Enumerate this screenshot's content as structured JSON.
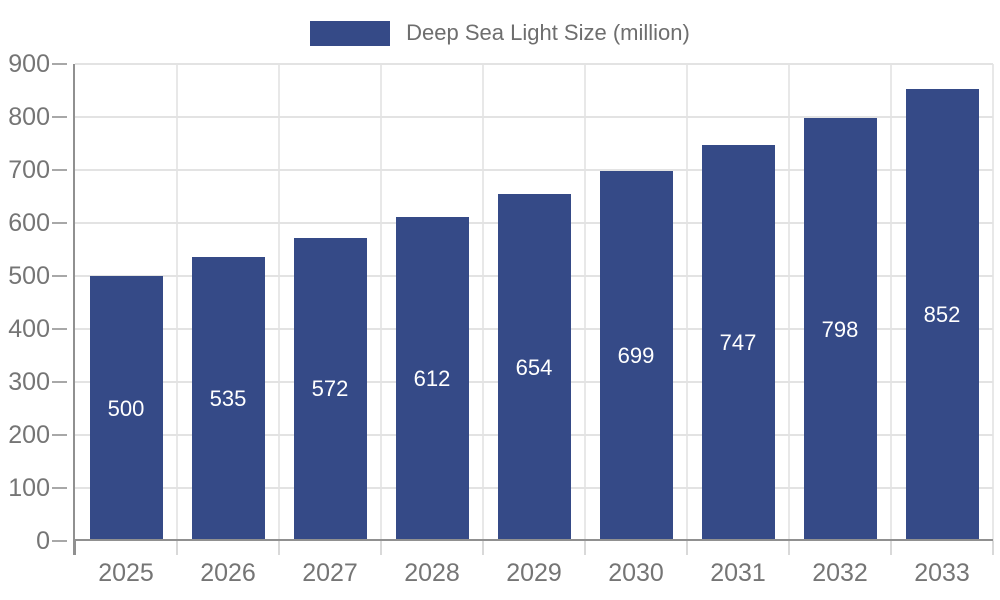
{
  "legend": {
    "label": "Deep Sea Light Size (million)"
  },
  "chart_data": {
    "type": "bar",
    "title": "Deep Sea Light Size (million)",
    "categories": [
      "2025",
      "2026",
      "2027",
      "2028",
      "2029",
      "2030",
      "2031",
      "2032",
      "2033"
    ],
    "series": [
      {
        "name": "Deep Sea Light Size (million)",
        "values": [
          500,
          535,
          572,
          612,
          654,
          699,
          747,
          798,
          852
        ]
      }
    ],
    "xlabel": "",
    "ylabel": "",
    "ylim": [
      0,
      900
    ],
    "yticks": [
      0,
      100,
      200,
      300,
      400,
      500,
      600,
      700,
      800,
      900
    ],
    "grid": true,
    "legend_position": "top",
    "value_labels": "inside-center",
    "colors": {
      "bar": "#354a87",
      "value_label": "#ffffff",
      "axis": "#909090",
      "grid": "#e3e3e3",
      "tick": "#a8a8a8",
      "minor_tick": "#d9d9d9",
      "axis_label": "#757575",
      "legend_text": "#6e6e6e",
      "background": "#ffffff"
    }
  }
}
